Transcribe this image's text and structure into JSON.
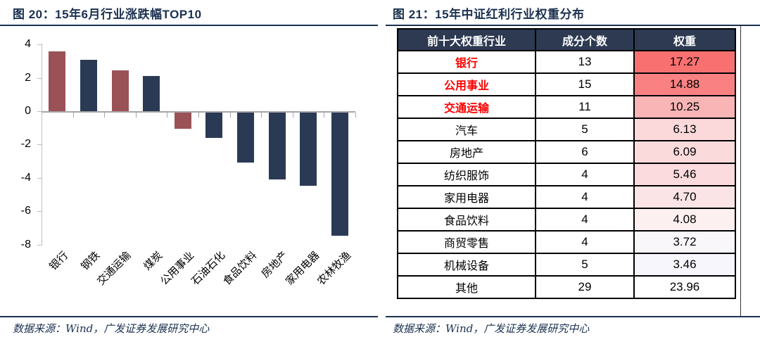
{
  "figures": {
    "left": {
      "title": "图 20：15年6月行业涨跌幅TOP10",
      "source": "数据来源：Wind，广发证券发展研究中心"
    },
    "right": {
      "title": "图 21：15年中证红利行业权重分布",
      "source": "数据来源：Wind，广发证券发展研究中心"
    }
  },
  "chart_data": {
    "type": "bar",
    "title": "15年6月行业涨跌幅TOP10",
    "xlabel": "",
    "ylabel": "",
    "ylim": [
      -8,
      4
    ],
    "yticks": [
      4,
      2,
      0,
      -2,
      -4,
      -6,
      -8
    ],
    "grid": false,
    "legend_position": "none",
    "categories": [
      "银行",
      "钢铁",
      "交通运输",
      "煤炭",
      "公用事业",
      "石油石化",
      "食品饮料",
      "房地产",
      "家用电器",
      "农林牧渔"
    ],
    "values": [
      3.6,
      3.1,
      2.45,
      2.1,
      -0.95,
      -1.5,
      -3.0,
      -4.0,
      -4.4,
      -7.4
    ],
    "bar_colors": [
      "#9a5257",
      "#2b3a54",
      "#9a5257",
      "#2b3a54",
      "#9a5257",
      "#2b3a54",
      "#2b3a54",
      "#2b3a54",
      "#2b3a54",
      "#2b3a54"
    ]
  },
  "table": {
    "headers": [
      "前十大权重行业",
      "成分个数",
      "权重"
    ],
    "rows": [
      {
        "industry": "银行",
        "count": "13",
        "weight": "17.27",
        "highlight": true,
        "weight_bg": "#f87170"
      },
      {
        "industry": "公用事业",
        "count": "15",
        "weight": "14.88",
        "highlight": true,
        "weight_bg": "#f98182"
      },
      {
        "industry": "交通运输",
        "count": "11",
        "weight": "10.25",
        "highlight": true,
        "weight_bg": "#f9b4b5"
      },
      {
        "industry": "汽车",
        "count": "5",
        "weight": "6.13",
        "highlight": false,
        "weight_bg": "#fbd9db"
      },
      {
        "industry": "房地产",
        "count": "6",
        "weight": "6.09",
        "highlight": false,
        "weight_bg": "#fbdadc"
      },
      {
        "industry": "纺织服饰",
        "count": "4",
        "weight": "5.46",
        "highlight": false,
        "weight_bg": "#fbdbde"
      },
      {
        "industry": "家用电器",
        "count": "4",
        "weight": "4.70",
        "highlight": false,
        "weight_bg": "#fae4e6"
      },
      {
        "industry": "食品饮料",
        "count": "4",
        "weight": "4.08",
        "highlight": false,
        "weight_bg": "#fdf0f1"
      },
      {
        "industry": "商贸零售",
        "count": "4",
        "weight": "3.72",
        "highlight": false,
        "weight_bg": "#faf7fb"
      },
      {
        "industry": "机械设备",
        "count": "5",
        "weight": "3.46",
        "highlight": false,
        "weight_bg": "#f7f6fc"
      },
      {
        "industry": "其他",
        "count": "29",
        "weight": "23.96",
        "highlight": false,
        "weight_bg": "#ffffff"
      }
    ]
  },
  "colors": {
    "title_navy": "#1b3150",
    "header_bg": "#2d3a52",
    "highlight_red": "#fe0000",
    "bar_red": "#9a5257",
    "bar_navy": "#2b3a54",
    "axis_gray": "#a6a6a6"
  }
}
